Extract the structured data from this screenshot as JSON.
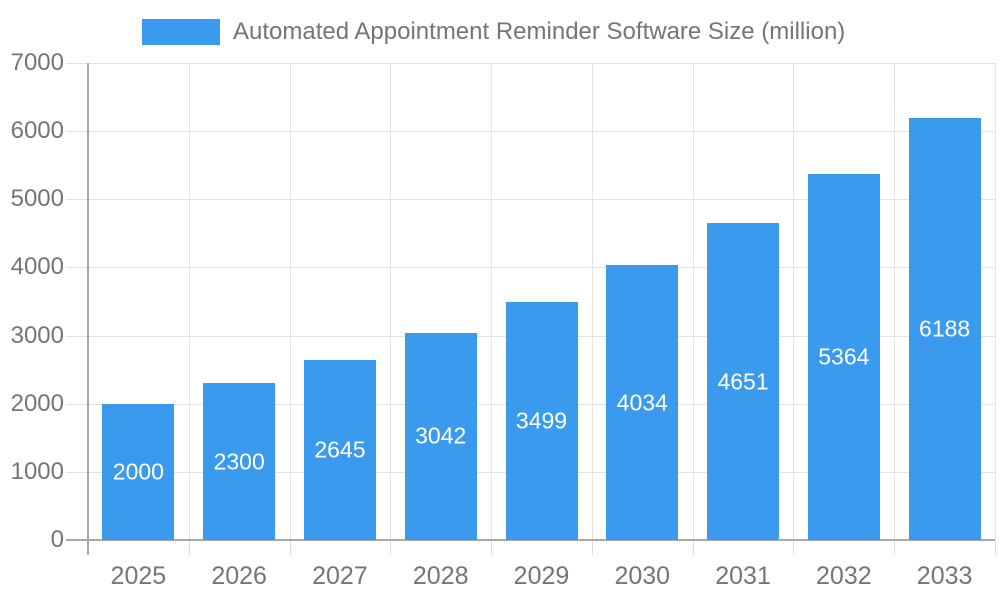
{
  "legend": {
    "label": "Automated Appointment Reminder Software Size (million)"
  },
  "colors": {
    "bar": "#3a9bee",
    "axis_line": "#a9a9a9",
    "gridline": "#e3e3e3",
    "tick": "#dcdcdc",
    "axis_label": "#757575",
    "value_label": "#ffffff",
    "background": "#ffffff"
  },
  "chart_data": {
    "type": "bar",
    "title": "Automated Appointment Reminder Software Size (million)",
    "categories": [
      "2025",
      "2026",
      "2027",
      "2028",
      "2029",
      "2030",
      "2031",
      "2032",
      "2033"
    ],
    "values": [
      2000,
      2300,
      2645,
      3042,
      3499,
      4034,
      4651,
      5364,
      6188
    ],
    "series": [
      {
        "name": "Automated Appointment Reminder Software Size (million)",
        "values": [
          2000,
          2300,
          2645,
          3042,
          3499,
          4034,
          4651,
          5364,
          6188
        ]
      }
    ],
    "xlabel": "",
    "ylabel": "",
    "ylim": [
      0,
      7000
    ],
    "ytick_step": 1000,
    "yticks": [
      0,
      1000,
      2000,
      3000,
      4000,
      5000,
      6000,
      7000
    ],
    "grid": true,
    "legend_position": "top-left",
    "value_labels": "inside-center"
  }
}
